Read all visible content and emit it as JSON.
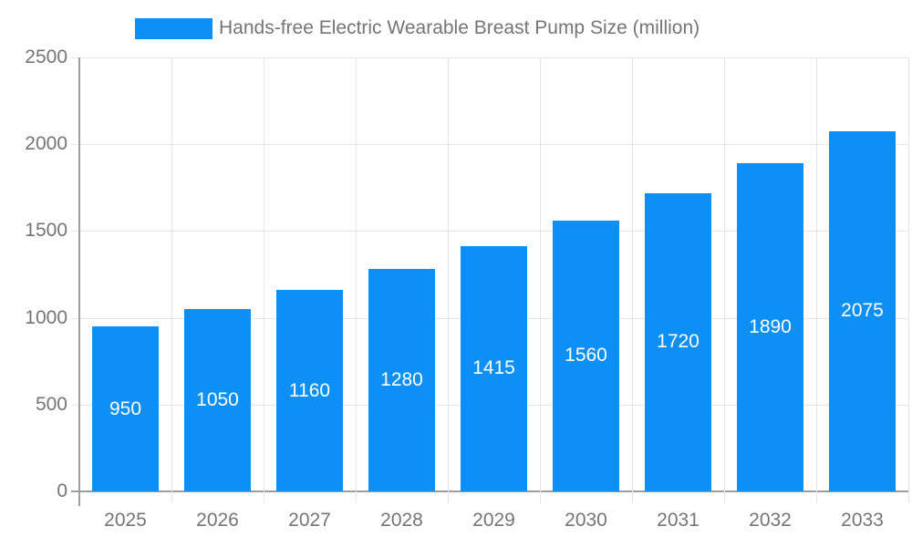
{
  "chart_data": {
    "type": "bar",
    "title": "Hands-free Electric Wearable Breast Pump Size (million)",
    "categories": [
      "2025",
      "2026",
      "2027",
      "2028",
      "2029",
      "2030",
      "2031",
      "2032",
      "2033"
    ],
    "values": [
      950,
      1050,
      1160,
      1280,
      1415,
      1560,
      1720,
      1890,
      2075
    ],
    "xlabel": "",
    "ylabel": "",
    "ylim": [
      0,
      2500
    ],
    "yticks": [
      0,
      500,
      1000,
      1500,
      2000,
      2500
    ],
    "grid": true,
    "legend_position": "top",
    "value_labels_inside_bars": true,
    "colors": {
      "bar": "#0d90f5",
      "grid": "#e6e6e6",
      "axis": "#9e9e9e",
      "text": "#757575",
      "value_label": "#ffffff",
      "background": "#ffffff"
    }
  }
}
